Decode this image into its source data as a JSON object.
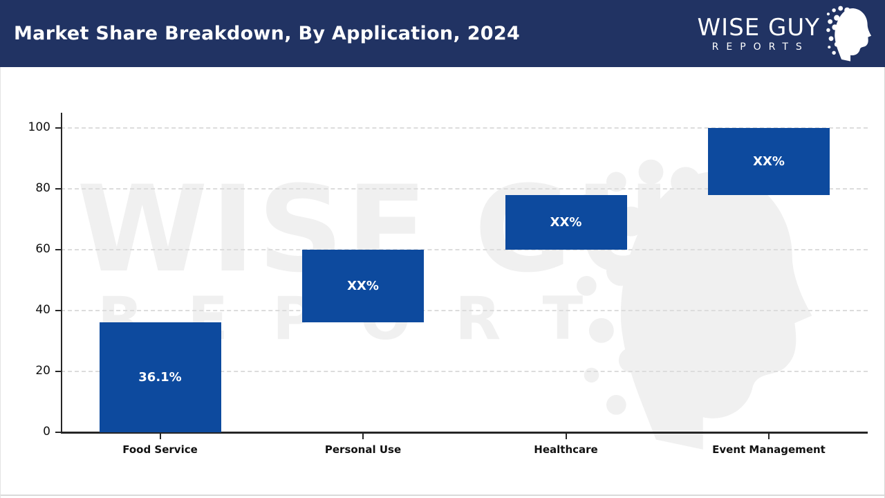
{
  "header": {
    "title": "Market Share Breakdown, By Application, 2024",
    "logo": {
      "line1": "WISE GUY",
      "line2": "REPORTS"
    }
  },
  "watermark": {
    "line1": "WISE GUY",
    "line2": "REPORTS"
  },
  "colors": {
    "header_bg": "#213363",
    "title_text": "#ffffff",
    "bar": "#0d4a9e",
    "bar_label": "#ffffff",
    "grid": "#dcdcdc",
    "axis": "#262626",
    "tick_text": "#111111",
    "watermark": "#f0f0f0"
  },
  "chart_data": {
    "type": "bar",
    "subtype": "waterfall",
    "title": "Market Share Breakdown, By Application, 2024",
    "categories": [
      "Food Service",
      "Personal Use",
      "Healthcare",
      "Event Management"
    ],
    "segments": [
      {
        "category": "Food Service",
        "start": 0,
        "end": 36.1,
        "label": "36.1%"
      },
      {
        "category": "Personal Use",
        "start": 36.1,
        "end": 60,
        "label": "XX%"
      },
      {
        "category": "Healthcare",
        "start": 60,
        "end": 78,
        "label": "XX%"
      },
      {
        "category": "Event Management",
        "start": 78,
        "end": 100,
        "label": "XX%"
      }
    ],
    "ylim": [
      0,
      100
    ],
    "yticks": [
      0,
      20,
      40,
      60,
      80,
      100
    ],
    "xlabel": "",
    "ylabel": "",
    "grid": "horizontal-dashed",
    "legend": "none"
  }
}
